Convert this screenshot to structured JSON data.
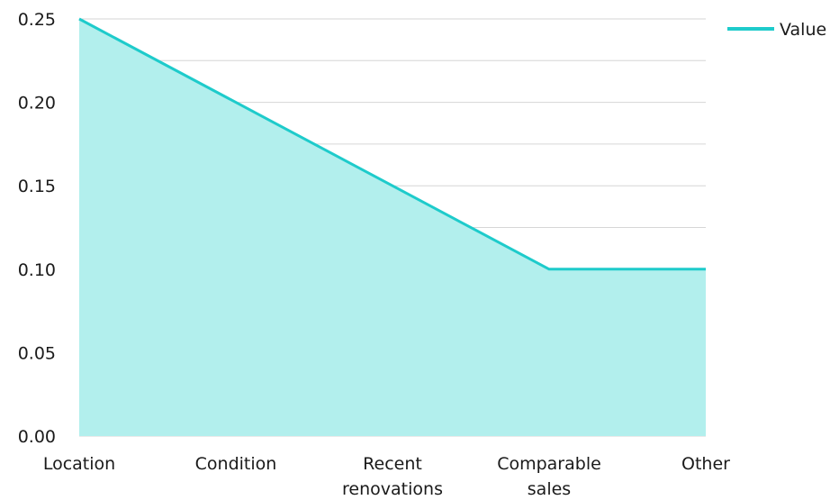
{
  "chart_data": {
    "type": "area",
    "categories": [
      "Location",
      "Condition",
      "Recent renovations",
      "Comparable sales",
      "Other"
    ],
    "category_lines": [
      [
        "Location"
      ],
      [
        "Condition"
      ],
      [
        "Recent",
        "renovations"
      ],
      [
        "Comparable",
        "sales"
      ],
      [
        "Other"
      ]
    ],
    "series": [
      {
        "name": "Value",
        "values": [
          0.25,
          0.2,
          0.15,
          0.1,
          0.1
        ]
      }
    ],
    "ylim": [
      0,
      0.25
    ],
    "yticks": [
      "0.00",
      "0.05",
      "0.10",
      "0.15",
      "0.20",
      "0.25"
    ],
    "ytick_values": [
      0,
      0.05,
      0.1,
      0.15,
      0.2,
      0.25
    ],
    "grid": true,
    "legend_position": "top-right",
    "colors": {
      "line": "#1ecbcb",
      "fill": "#b2efed",
      "grid": "#d6d6d6"
    }
  }
}
